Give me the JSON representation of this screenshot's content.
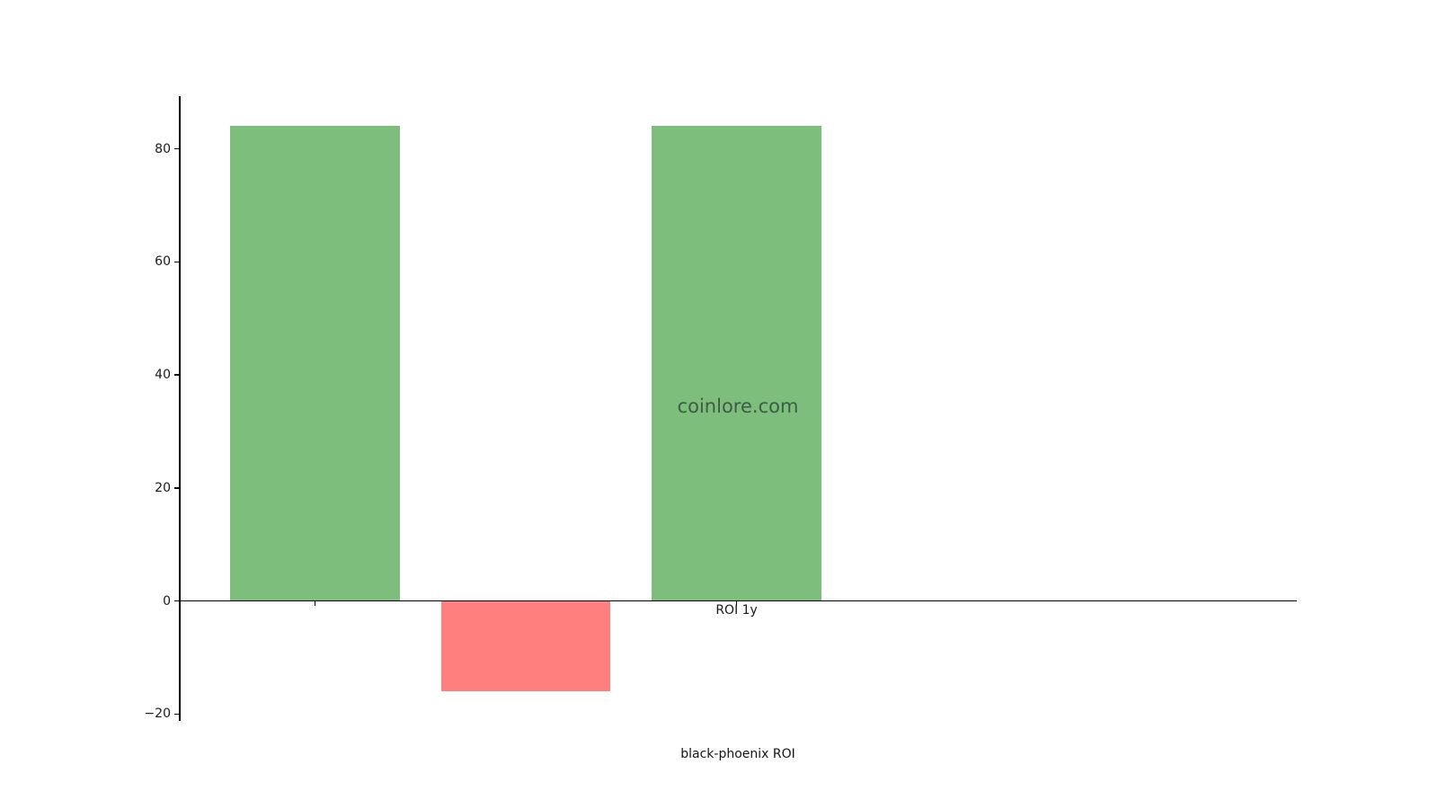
{
  "watermark": {
    "text": "coinlore.com",
    "color": "#3e5c45"
  },
  "chart_data": {
    "type": "bar",
    "title": "",
    "xlabel": "black-phoenix ROI",
    "ylabel": "",
    "categories": [
      "",
      "",
      "ROI 1y"
    ],
    "values": [
      84,
      -16,
      84
    ],
    "series": [
      {
        "name": "black-phoenix ROI",
        "values": [
          84,
          -16,
          84
        ]
      }
    ],
    "positive_color": "#7dbe7d",
    "negative_color": "#ff7f7f",
    "axis_color": "#000000",
    "text_color": "#1a1a1a",
    "y_ticks": [
      80,
      60,
      40,
      20,
      0,
      -20
    ],
    "x_ticks": [
      {
        "index": 0,
        "label": ""
      },
      {
        "index": 2,
        "label": "ROI 1y"
      }
    ],
    "ylim": [
      -21.2,
      89.3
    ],
    "grid": false,
    "legend_position": "none",
    "background": "#ffffff"
  }
}
